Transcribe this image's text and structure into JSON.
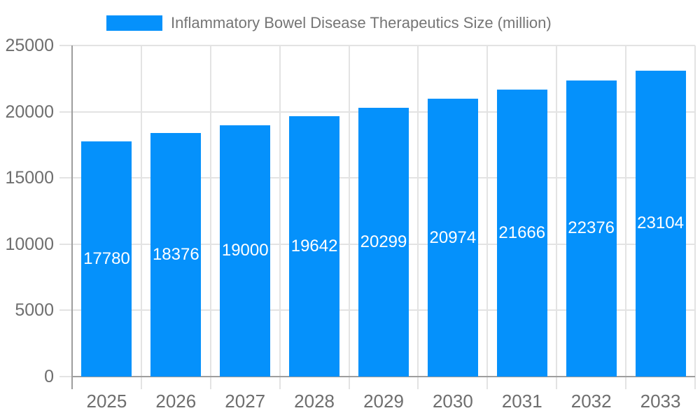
{
  "legend": {
    "label": "Inflammatory Bowel Disease Therapeutics Size (million)"
  },
  "colors": {
    "bar": "#0591fb",
    "bar_label": "#ffffff",
    "axis_line": "#9e9e9e",
    "gridline": "#e3e3e3",
    "tick_label": "#6e6e6e",
    "legend_text": "#757575",
    "background": "#ffffff"
  },
  "chart_data": {
    "type": "bar",
    "title": "Inflammatory Bowel Disease Therapeutics Size (million)",
    "categories": [
      "2025",
      "2026",
      "2027",
      "2028",
      "2029",
      "2030",
      "2031",
      "2032",
      "2033"
    ],
    "values": [
      17780,
      18376,
      19000,
      19642,
      20299,
      20974,
      21666,
      22376,
      23104
    ],
    "xlabel": "",
    "ylabel": "",
    "ylim": [
      0,
      25000
    ],
    "yticks": [
      0,
      5000,
      10000,
      15000,
      20000,
      25000
    ],
    "grid": true,
    "legend_position": "top",
    "bar_labels": "centered-white"
  }
}
